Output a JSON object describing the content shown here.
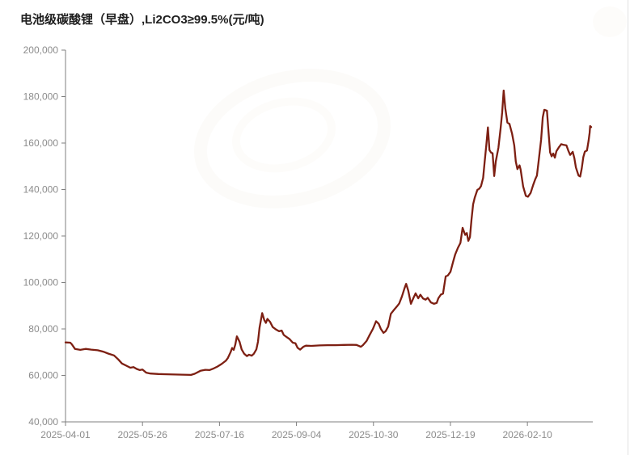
{
  "title": "电池级碳酸锂（早盘）,Li2CO3≥99.5%(元/吨)",
  "chart_data": {
    "type": "line",
    "title": "电池级碳酸锂（早盘）,Li2CO3≥99.5%(元/吨)",
    "xlabel": "",
    "ylabel": "",
    "ylim": [
      40000,
      200000
    ],
    "y_tick_step": 20000,
    "grid": false,
    "legend": "none",
    "line_color": "#7d1f12",
    "axis_color": "#7f7f7f",
    "label_color": "#8c8c8c",
    "y_ticks": [
      {
        "label": "200,000",
        "value": 200000
      },
      {
        "label": "180,000",
        "value": 180000
      },
      {
        "label": "160,000",
        "value": 160000
      },
      {
        "label": "140,000",
        "value": 140000
      },
      {
        "label": "120,000",
        "value": 120000
      },
      {
        "label": "100,000",
        "value": 100000
      },
      {
        "label": "80,000",
        "value": 80000
      },
      {
        "label": "60,000",
        "value": 60000
      },
      {
        "label": "40,000",
        "value": 40000
      }
    ],
    "x_ticks": [
      {
        "label": "2025-04-01",
        "t": 0.0
      },
      {
        "label": "2025-05-26",
        "t": 0.146
      },
      {
        "label": "2025-07-16",
        "t": 0.292
      },
      {
        "label": "2025-09-04",
        "t": 0.438
      },
      {
        "label": "2025-10-30",
        "t": 0.584
      },
      {
        "label": "2025-12-19",
        "t": 0.73
      },
      {
        "label": "2026-02-10",
        "t": 0.876
      }
    ],
    "points_note": "t = normalized position along time axis (0 = 2025-04-01 tick, 0.876 = 2026-02-10 tick); v = price in yuan/ton",
    "points": [
      [
        0.0,
        74200
      ],
      [
        0.009,
        74100
      ],
      [
        0.012,
        73400
      ],
      [
        0.018,
        71400
      ],
      [
        0.028,
        71000
      ],
      [
        0.038,
        71400
      ],
      [
        0.049,
        71100
      ],
      [
        0.061,
        70800
      ],
      [
        0.072,
        70200
      ],
      [
        0.081,
        69400
      ],
      [
        0.092,
        68600
      ],
      [
        0.1,
        66900
      ],
      [
        0.107,
        65100
      ],
      [
        0.115,
        64200
      ],
      [
        0.123,
        63300
      ],
      [
        0.129,
        63600
      ],
      [
        0.135,
        62800
      ],
      [
        0.141,
        62300
      ],
      [
        0.146,
        62500
      ],
      [
        0.153,
        61200
      ],
      [
        0.161,
        60800
      ],
      [
        0.176,
        60600
      ],
      [
        0.192,
        60500
      ],
      [
        0.207,
        60400
      ],
      [
        0.222,
        60300
      ],
      [
        0.238,
        60200
      ],
      [
        0.245,
        60700
      ],
      [
        0.256,
        62000
      ],
      [
        0.265,
        62400
      ],
      [
        0.273,
        62300
      ],
      [
        0.281,
        63000
      ],
      [
        0.288,
        63800
      ],
      [
        0.296,
        64900
      ],
      [
        0.304,
        66300
      ],
      [
        0.308,
        67500
      ],
      [
        0.313,
        70000
      ],
      [
        0.316,
        71800
      ],
      [
        0.319,
        71000
      ],
      [
        0.322,
        73200
      ],
      [
        0.325,
        76800
      ],
      [
        0.33,
        74500
      ],
      [
        0.334,
        71200
      ],
      [
        0.339,
        69300
      ],
      [
        0.344,
        68300
      ],
      [
        0.348,
        68900
      ],
      [
        0.353,
        68500
      ],
      [
        0.357,
        69300
      ],
      [
        0.362,
        71200
      ],
      [
        0.365,
        74500
      ],
      [
        0.368,
        80500
      ],
      [
        0.373,
        86800
      ],
      [
        0.377,
        83800
      ],
      [
        0.38,
        82600
      ],
      [
        0.383,
        84300
      ],
      [
        0.388,
        83000
      ],
      [
        0.393,
        80800
      ],
      [
        0.399,
        79800
      ],
      [
        0.405,
        79000
      ],
      [
        0.41,
        79300
      ],
      [
        0.414,
        77400
      ],
      [
        0.42,
        76400
      ],
      [
        0.425,
        75600
      ],
      [
        0.431,
        74100
      ],
      [
        0.436,
        73800
      ],
      [
        0.44,
        71900
      ],
      [
        0.445,
        71100
      ],
      [
        0.451,
        72300
      ],
      [
        0.456,
        72800
      ],
      [
        0.466,
        72700
      ],
      [
        0.482,
        72900
      ],
      [
        0.497,
        73000
      ],
      [
        0.512,
        73000
      ],
      [
        0.528,
        73100
      ],
      [
        0.543,
        73200
      ],
      [
        0.552,
        73100
      ],
      [
        0.56,
        72300
      ],
      [
        0.564,
        73000
      ],
      [
        0.571,
        74800
      ],
      [
        0.577,
        77500
      ],
      [
        0.583,
        80000
      ],
      [
        0.589,
        83300
      ],
      [
        0.594,
        82200
      ],
      [
        0.598,
        80000
      ],
      [
        0.603,
        78300
      ],
      [
        0.607,
        79000
      ],
      [
        0.612,
        81000
      ],
      [
        0.617,
        86500
      ],
      [
        0.623,
        88200
      ],
      [
        0.629,
        89800
      ],
      [
        0.633,
        91000
      ],
      [
        0.638,
        94000
      ],
      [
        0.643,
        97500
      ],
      [
        0.646,
        99400
      ],
      [
        0.65,
        96500
      ],
      [
        0.655,
        90800
      ],
      [
        0.66,
        93400
      ],
      [
        0.664,
        95300
      ],
      [
        0.669,
        93200
      ],
      [
        0.673,
        94700
      ],
      [
        0.678,
        93100
      ],
      [
        0.683,
        92600
      ],
      [
        0.687,
        93400
      ],
      [
        0.693,
        91400
      ],
      [
        0.699,
        90800
      ],
      [
        0.704,
        91200
      ],
      [
        0.707,
        93200
      ],
      [
        0.712,
        94800
      ],
      [
        0.716,
        95200
      ],
      [
        0.721,
        102600
      ],
      [
        0.725,
        103000
      ],
      [
        0.73,
        104600
      ],
      [
        0.735,
        108800
      ],
      [
        0.739,
        112000
      ],
      [
        0.744,
        114800
      ],
      [
        0.749,
        117000
      ],
      [
        0.753,
        123500
      ],
      [
        0.758,
        120500
      ],
      [
        0.761,
        121300
      ],
      [
        0.764,
        117900
      ],
      [
        0.767,
        119500
      ],
      [
        0.77,
        127000
      ],
      [
        0.773,
        133600
      ],
      [
        0.776,
        136500
      ],
      [
        0.781,
        139800
      ],
      [
        0.785,
        140400
      ],
      [
        0.788,
        141500
      ],
      [
        0.792,
        145000
      ],
      [
        0.795,
        152000
      ],
      [
        0.798,
        159000
      ],
      [
        0.801,
        166700
      ],
      [
        0.804,
        157000
      ],
      [
        0.807,
        155900
      ],
      [
        0.81,
        155600
      ],
      [
        0.813,
        145800
      ],
      [
        0.816,
        152000
      ],
      [
        0.821,
        158000
      ],
      [
        0.825,
        166000
      ],
      [
        0.828,
        173000
      ],
      [
        0.831,
        182600
      ],
      [
        0.834,
        175000
      ],
      [
        0.838,
        168800
      ],
      [
        0.842,
        168200
      ],
      [
        0.847,
        164000
      ],
      [
        0.851,
        159000
      ],
      [
        0.854,
        152000
      ],
      [
        0.857,
        148800
      ],
      [
        0.861,
        150400
      ],
      [
        0.863,
        148700
      ],
      [
        0.868,
        141300
      ],
      [
        0.873,
        137300
      ],
      [
        0.877,
        136900
      ],
      [
        0.882,
        138500
      ],
      [
        0.887,
        142000
      ],
      [
        0.891,
        144500
      ],
      [
        0.894,
        146000
      ],
      [
        0.897,
        151500
      ],
      [
        0.902,
        161500
      ],
      [
        0.905,
        171000
      ],
      [
        0.908,
        174300
      ],
      [
        0.913,
        173900
      ],
      [
        0.916,
        165000
      ],
      [
        0.919,
        156000
      ],
      [
        0.922,
        154300
      ],
      [
        0.925,
        155500
      ],
      [
        0.928,
        153700
      ],
      [
        0.931,
        156500
      ],
      [
        0.936,
        158300
      ],
      [
        0.94,
        159500
      ],
      [
        0.945,
        159200
      ],
      [
        0.95,
        159000
      ],
      [
        0.954,
        156500
      ],
      [
        0.957,
        154900
      ],
      [
        0.962,
        156200
      ],
      [
        0.965,
        153500
      ],
      [
        0.968,
        149500
      ],
      [
        0.973,
        146000
      ],
      [
        0.976,
        145600
      ],
      [
        0.979,
        149000
      ],
      [
        0.982,
        154000
      ],
      [
        0.985,
        156300
      ],
      [
        0.989,
        156800
      ],
      [
        0.992,
        161000
      ],
      [
        0.994,
        164500
      ],
      [
        0.995,
        167300
      ],
      [
        0.997,
        166900
      ]
    ]
  }
}
